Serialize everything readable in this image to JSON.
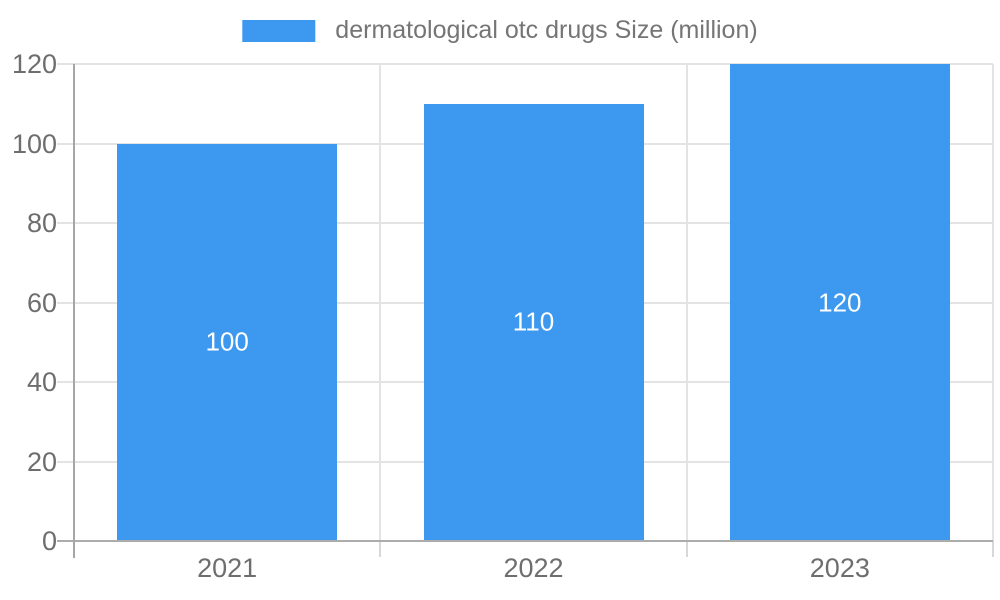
{
  "legend": {
    "label": "dermatological otc drugs Size (million)"
  },
  "chart_data": {
    "type": "bar",
    "title": "",
    "xlabel": "",
    "ylabel": "",
    "categories": [
      "2021",
      "2022",
      "2023"
    ],
    "values": [
      100,
      110,
      120
    ],
    "series_label": "dermatological otc drugs Size (million)",
    "data_labels": [
      "100",
      "110",
      "120"
    ],
    "ylim": [
      0,
      120
    ],
    "yticks": [
      0,
      20,
      40,
      60,
      80,
      100,
      120
    ],
    "legend_position": "top",
    "grid": "on",
    "colors": {
      "bar": "#3c99ef",
      "data_label": "#ffffff",
      "axis_text": "#6e6e6e",
      "legend_text": "#757575",
      "gridline": "#e3e3e3",
      "zero_line": "#acacac",
      "axis_border": "#a6a6a6"
    }
  }
}
